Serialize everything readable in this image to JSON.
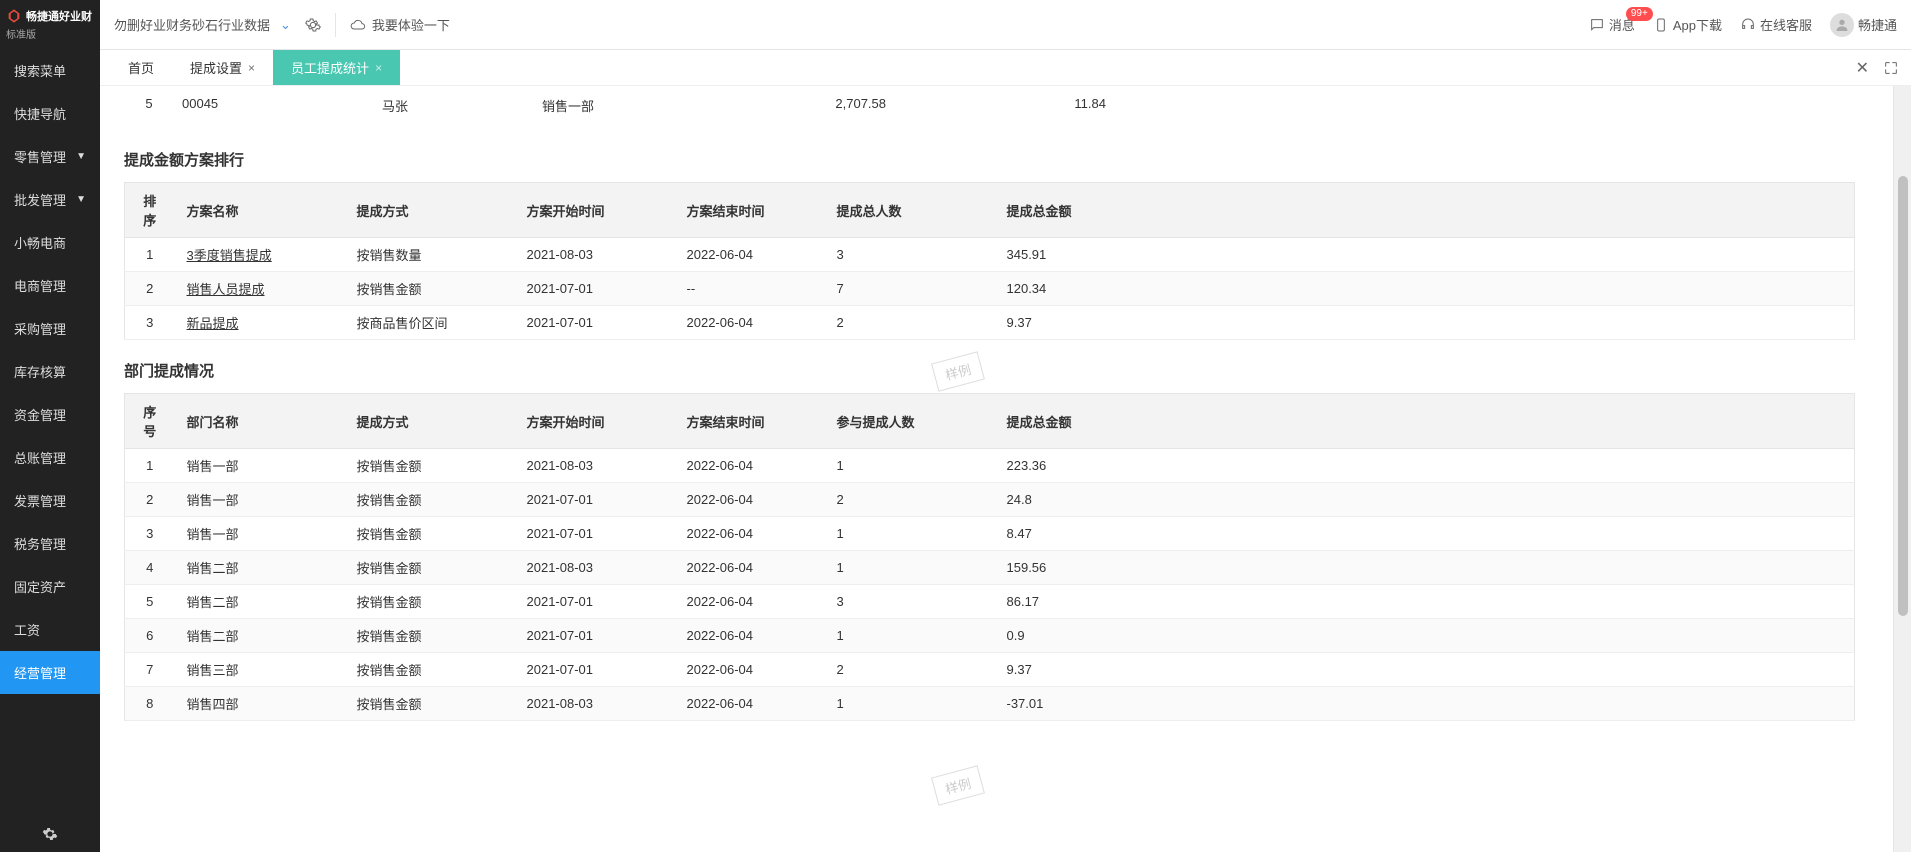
{
  "brand": {
    "name": "畅捷通好业财",
    "version": "标准版"
  },
  "sidebar": {
    "items": [
      {
        "label": "搜索菜单",
        "caret": false
      },
      {
        "label": "快捷导航",
        "caret": false
      },
      {
        "label": "零售管理",
        "caret": true
      },
      {
        "label": "批发管理",
        "caret": true
      },
      {
        "label": "小畅电商",
        "caret": false
      },
      {
        "label": "电商管理",
        "caret": false
      },
      {
        "label": "采购管理",
        "caret": false
      },
      {
        "label": "库存核算",
        "caret": false
      },
      {
        "label": "资金管理",
        "caret": false
      },
      {
        "label": "总账管理",
        "caret": false
      },
      {
        "label": "发票管理",
        "caret": false
      },
      {
        "label": "税务管理",
        "caret": false
      },
      {
        "label": "固定资产",
        "caret": false
      },
      {
        "label": "工资",
        "caret": false
      },
      {
        "label": "经营管理",
        "caret": false,
        "active": true
      }
    ]
  },
  "topbar": {
    "dataset": "勿删好业财务砂石行业数据",
    "experience": "我要体验一下",
    "msg": "消息",
    "badge": "99+",
    "download": "App下载",
    "service": "在线客服",
    "user": "畅捷通"
  },
  "tabs": {
    "items": [
      {
        "label": "首页",
        "closable": false
      },
      {
        "label": "提成设置",
        "closable": true
      },
      {
        "label": "员工提成统计",
        "closable": true,
        "active": true
      }
    ]
  },
  "partialRow": {
    "idx": "5",
    "code": "00045",
    "name": "马张",
    "dept": "销售一部",
    "amount": "2,707.58",
    "commission": "11.84"
  },
  "watermark": "样例",
  "section1": {
    "title": "提成金额方案排行",
    "columns": [
      "排序",
      "方案名称",
      "提成方式",
      "方案开始时间",
      "方案结束时间",
      "提成总人数",
      "提成总金额"
    ],
    "rows": [
      {
        "idx": "1",
        "name": "3季度销售提成",
        "mode": "按销售数量",
        "start": "2021-08-03",
        "end": "2022-06-04",
        "people": "3",
        "amount": "345.91"
      },
      {
        "idx": "2",
        "name": "销售人员提成",
        "mode": "按销售金额",
        "start": "2021-07-01",
        "end": "--",
        "people": "7",
        "amount": "120.34"
      },
      {
        "idx": "3",
        "name": "新品提成",
        "mode": "按商品售价区间",
        "start": "2021-07-01",
        "end": "2022-06-04",
        "people": "2",
        "amount": "9.37"
      }
    ]
  },
  "section2": {
    "title": "部门提成情况",
    "columns": [
      "序号",
      "部门名称",
      "提成方式",
      "方案开始时间",
      "方案结束时间",
      "参与提成人数",
      "提成总金额"
    ],
    "rows": [
      {
        "idx": "1",
        "dept": "销售一部",
        "mode": "按销售金额",
        "start": "2021-08-03",
        "end": "2022-06-04",
        "people": "1",
        "amount": "223.36"
      },
      {
        "idx": "2",
        "dept": "销售一部",
        "mode": "按销售金额",
        "start": "2021-07-01",
        "end": "2022-06-04",
        "people": "2",
        "amount": "24.8"
      },
      {
        "idx": "3",
        "dept": "销售一部",
        "mode": "按销售金额",
        "start": "2021-07-01",
        "end": "2022-06-04",
        "people": "1",
        "amount": "8.47"
      },
      {
        "idx": "4",
        "dept": "销售二部",
        "mode": "按销售金额",
        "start": "2021-08-03",
        "end": "2022-06-04",
        "people": "1",
        "amount": "159.56"
      },
      {
        "idx": "5",
        "dept": "销售二部",
        "mode": "按销售金额",
        "start": "2021-07-01",
        "end": "2022-06-04",
        "people": "3",
        "amount": "86.17"
      },
      {
        "idx": "6",
        "dept": "销售二部",
        "mode": "按销售金额",
        "start": "2021-07-01",
        "end": "2022-06-04",
        "people": "1",
        "amount": "0.9"
      },
      {
        "idx": "7",
        "dept": "销售三部",
        "mode": "按销售金额",
        "start": "2021-07-01",
        "end": "2022-06-04",
        "people": "2",
        "amount": "9.37"
      },
      {
        "idx": "8",
        "dept": "销售四部",
        "mode": "按销售金额",
        "start": "2021-08-03",
        "end": "2022-06-04",
        "people": "1",
        "amount": "-37.01"
      }
    ]
  },
  "colors": {
    "sidebar_bg": "#222222",
    "active_nav": "#2196f3",
    "tab_active": "#4ac7b0",
    "badge": "#ff4d4f",
    "border": "#e5e5e5",
    "header_bg": "#f3f3f3"
  }
}
